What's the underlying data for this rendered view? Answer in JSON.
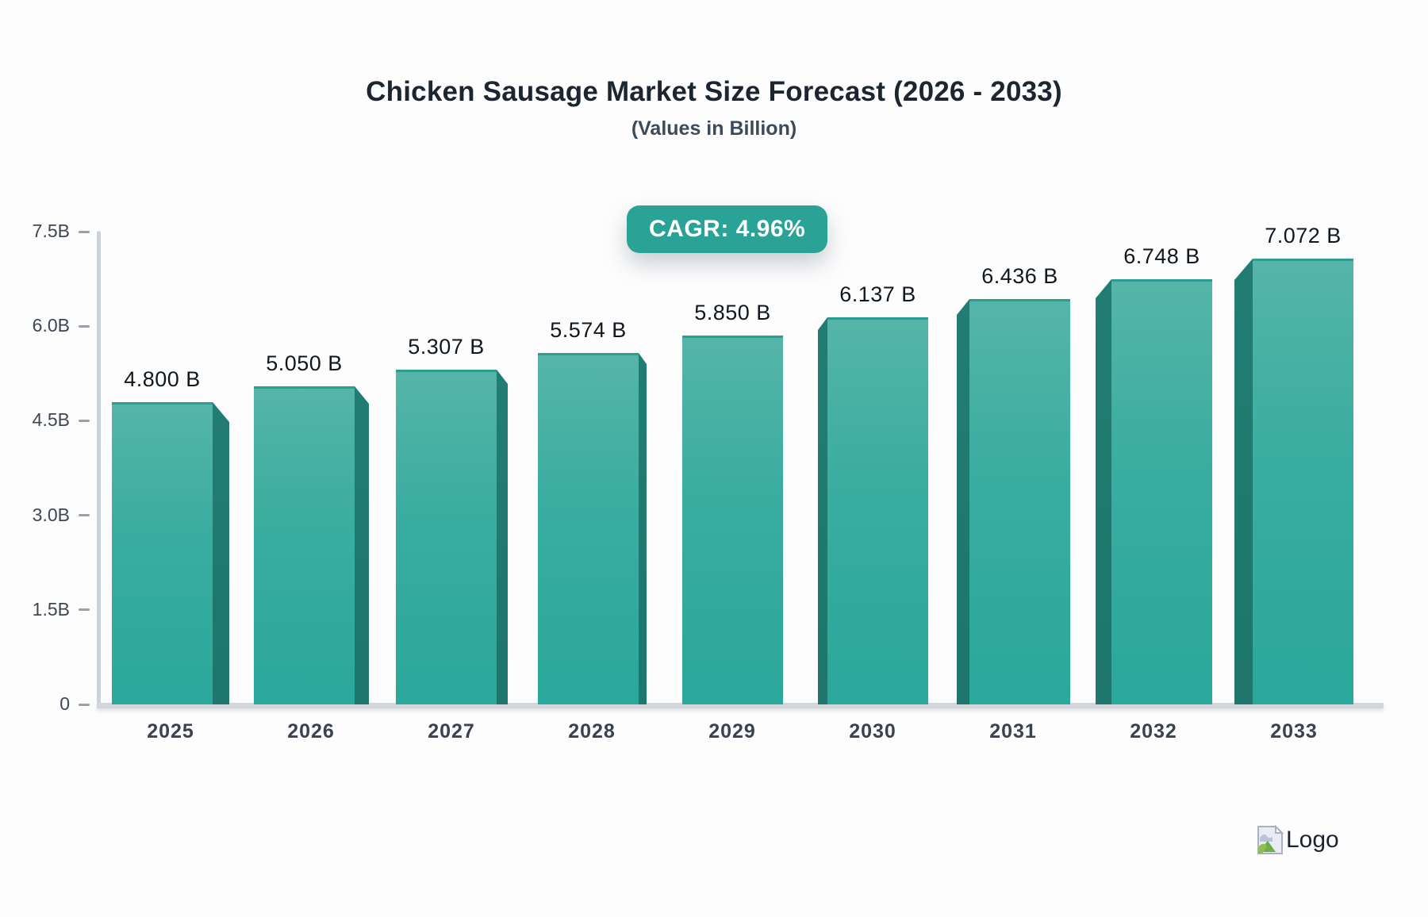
{
  "title": "Chicken Sausage Market Size Forecast (2026 - 2033)",
  "subtitle": "(Values in Billion)",
  "badge": {
    "label": "CAGR: 4.96%",
    "bg_color": "#2aa396",
    "text_color": "#ffffff"
  },
  "footer": {
    "logo_text": "Logo",
    "icon": "broken-image-icon"
  },
  "chart_data": {
    "type": "bar",
    "title": "Chicken Sausage Market Size Forecast (2026 - 2033)",
    "subtitle": "(Values in Billion)",
    "categories": [
      "2025",
      "2026",
      "2027",
      "2028",
      "2029",
      "2030",
      "2031",
      "2032",
      "2033"
    ],
    "values": [
      4.8,
      5.05,
      5.307,
      5.574,
      5.85,
      6.137,
      6.436,
      6.748,
      7.072
    ],
    "value_labels": [
      "4.800 B",
      "5.050 B",
      "5.307 B",
      "5.574 B",
      "5.850 B",
      "6.137 B",
      "6.436 B",
      "6.748 B",
      "7.072 B"
    ],
    "annotation": "CAGR: 4.96%",
    "xlabel": "",
    "ylabel": "",
    "ylim": [
      0,
      7.5
    ],
    "ytick_labels": [
      "0",
      "1.5B",
      "3.0B",
      "4.5B",
      "6.0B",
      "7.5B"
    ],
    "ytick_values": [
      0,
      1.5,
      3.0,
      4.5,
      6.0,
      7.5
    ],
    "grid": false,
    "legend": false,
    "bar_style": "3d-perspective-center",
    "colors": {
      "bar_face_top": "#55b5a8",
      "bar_face_bottom": "#2aa89b",
      "bar_side": "#1f7c72",
      "axis_line": "#ced2d9",
      "tick": "#9aa0aa",
      "y_label": "#3d4654",
      "x_label": "#39424e",
      "value_label": "#10181f"
    }
  }
}
